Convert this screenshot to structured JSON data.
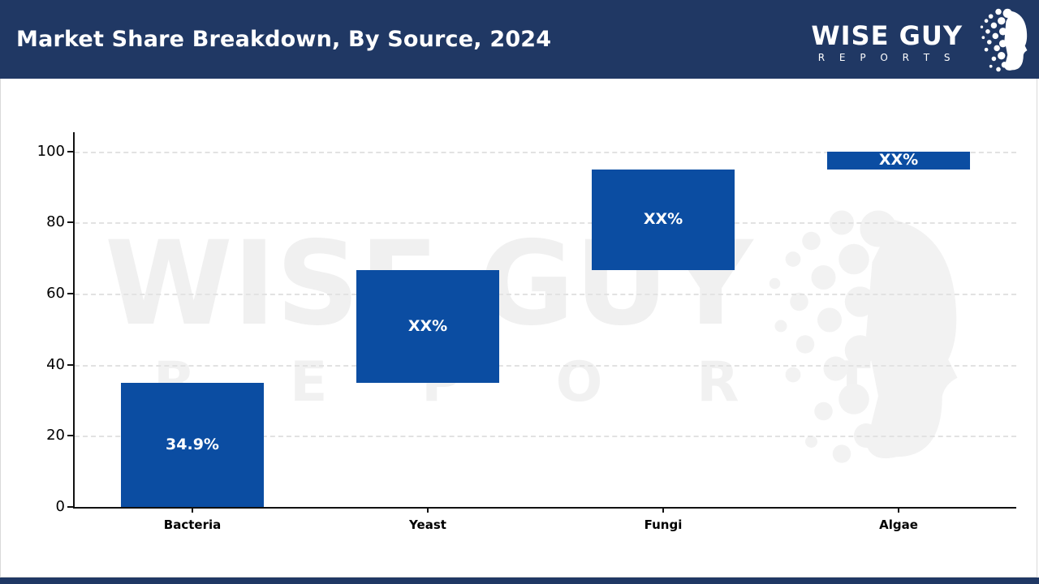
{
  "header": {
    "title": "Market Share Breakdown, By Source, 2024",
    "bg_color": "#203864",
    "logo": {
      "brand_line1": "WISE GUY",
      "brand_line2": "R E P O R T S"
    }
  },
  "watermark": {
    "line1": "WISE GUY",
    "line2": "R E P O R T S"
  },
  "chart_data": {
    "type": "bar",
    "subtype": "waterfall",
    "title": "Market Share Breakdown, By Source, 2024",
    "categories": [
      "Bacteria",
      "Yeast",
      "Fungi",
      "Algae"
    ],
    "segments": [
      {
        "category": "Bacteria",
        "start": 0,
        "end": 34.9,
        "label": "34.9%"
      },
      {
        "category": "Yeast",
        "start": 34.9,
        "end": 66.6,
        "label": "XX%"
      },
      {
        "category": "Fungi",
        "start": 66.6,
        "end": 95.0,
        "label": "XX%"
      },
      {
        "category": "Algae",
        "start": 95.0,
        "end": 100.0,
        "label": "XX%"
      }
    ],
    "yticks": [
      0,
      20,
      40,
      60,
      80,
      100
    ],
    "ylim": [
      0,
      105.4
    ],
    "xlabel": "",
    "ylabel": "",
    "grid": "horizontal-dashed",
    "legend": "none",
    "bar_color": "#0b4da2",
    "bar_label_color": "#ffffff",
    "axis_color": "#111111",
    "gridline_color": "#e2e2e2"
  }
}
